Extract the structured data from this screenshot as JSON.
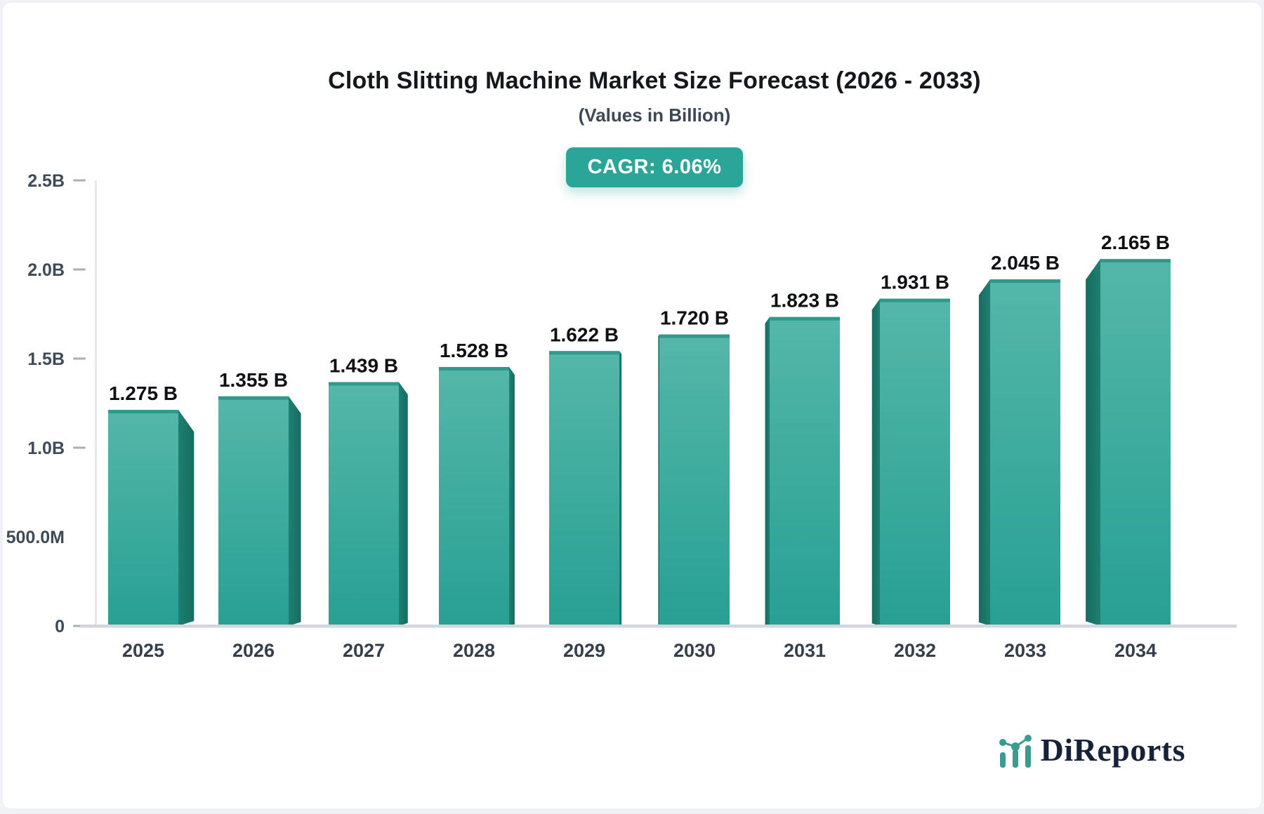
{
  "header": {
    "title": "Cloth Slitting Machine Market Size Forecast (2026 - 2033)",
    "subtitle": "(Values in Billion)",
    "cagr_badge": "CAGR: 6.06%"
  },
  "chart_data": {
    "type": "bar",
    "title": "Cloth Slitting Machine Market Size Forecast (2026 - 2033)",
    "subtitle": "(Values in Billion)",
    "xlabel": "",
    "ylabel": "",
    "unit": "Billion USD",
    "cagr": "6.06%",
    "categories": [
      "2025",
      "2026",
      "2027",
      "2028",
      "2029",
      "2030",
      "2031",
      "2032",
      "2033",
      "2034"
    ],
    "values": [
      1.275,
      1.355,
      1.439,
      1.528,
      1.622,
      1.72,
      1.823,
      1.931,
      2.045,
      2.165
    ],
    "value_labels": [
      "1.275 B",
      "1.355 B",
      "1.439 B",
      "1.528 B",
      "1.622 B",
      "1.720 B",
      "1.823 B",
      "1.931 B",
      "2.045 B",
      "2.165 B"
    ],
    "ylim": [
      0,
      2.5
    ],
    "y_ticks": [
      {
        "label": "2.5B",
        "value": 2.5,
        "dash": true
      },
      {
        "label": "2.0B",
        "value": 2.0,
        "dash": true
      },
      {
        "label": "1.5B",
        "value": 1.5,
        "dash": true
      },
      {
        "label": "1.0B",
        "value": 1.0,
        "dash": true
      },
      {
        "label": "500.0M",
        "value": 0.5,
        "dash": false
      },
      {
        "label": "0",
        "value": 0,
        "dash": true
      }
    ],
    "grid": false,
    "legend": false,
    "style_3d": true,
    "colors": {
      "bar_face_top": "#54b7a9",
      "bar_face_bottom": "#27a093",
      "bar_top_edge": "#2e9a8b",
      "bar_side": "#1d8072",
      "bar_side_dark": "#166c60",
      "baseline": "#d3d6dc",
      "axis_line": "#e6e8ec",
      "tick_dash": "#a9aeb7",
      "tick_label": "#3f4a57",
      "year_label": "#353f4b",
      "value_label": "#0e1013",
      "badge": "#2aa597"
    }
  },
  "branding": {
    "name": "DiReports",
    "icon": "mini-bar-chart-logo-icon",
    "icon_color": "#3a9c91",
    "text_color": "#152238"
  }
}
